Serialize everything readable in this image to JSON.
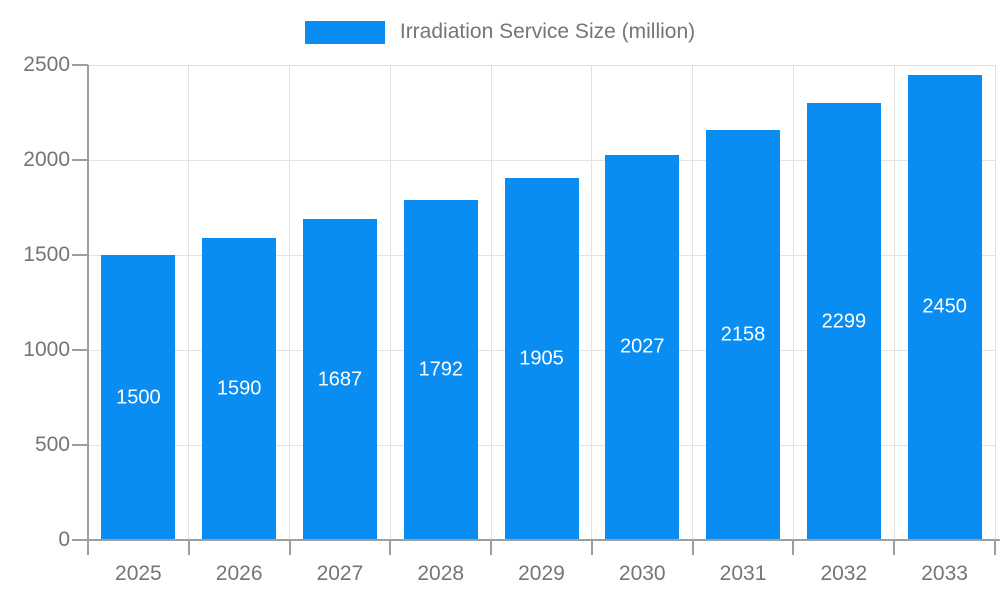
{
  "legend": {
    "label": "Irradiation Service Size (million)"
  },
  "chart_data": {
    "type": "bar",
    "title": "Irradiation Service Size (million)",
    "categories": [
      "2025",
      "2026",
      "2027",
      "2028",
      "2029",
      "2030",
      "2031",
      "2032",
      "2033"
    ],
    "values": [
      1500,
      1590,
      1687,
      1792,
      1905,
      2027,
      2158,
      2299,
      2450
    ],
    "value_labels": [
      "1500",
      "1590",
      "1687",
      "1792",
      "1905",
      "2027",
      "2158",
      "2299",
      "2450"
    ],
    "xlabel": "",
    "ylabel": "",
    "ylim": [
      0,
      2500
    ],
    "ytick_step": 500,
    "ytick_labels": [
      "0",
      "500",
      "1000",
      "1500",
      "2000",
      "2500"
    ],
    "grid": true,
    "legend_position": "top-center",
    "colors": {
      "bar": "#0a8df2",
      "value_label": "#ffffff",
      "axis_text": "#757575",
      "grid_line": "#e2e2e2",
      "axis_line": "#9e9e9e"
    }
  }
}
